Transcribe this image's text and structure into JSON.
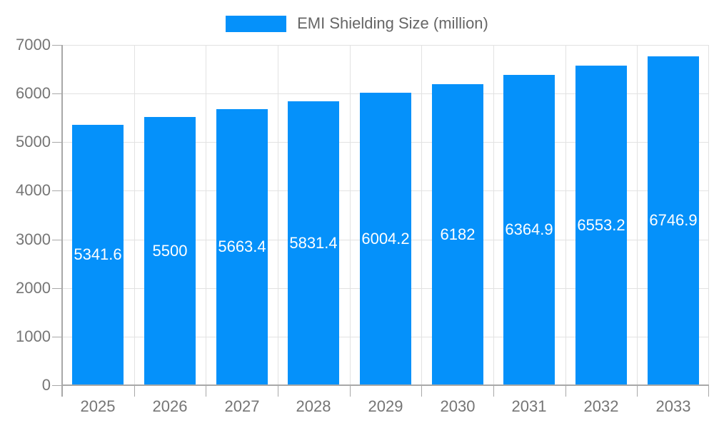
{
  "chart_data": {
    "type": "bar",
    "title": "EMI Shielding Size (million)",
    "legend": {
      "label": "EMI Shielding Size (million)",
      "position": "top-center"
    },
    "categories": [
      "2025",
      "2026",
      "2027",
      "2028",
      "2029",
      "2030",
      "2031",
      "2032",
      "2033"
    ],
    "values": [
      5341.6,
      5500,
      5663.4,
      5831.4,
      6004.2,
      6182,
      6364.9,
      6553.2,
      6746.9
    ],
    "value_labels": [
      "5341.6",
      "5500",
      "5663.4",
      "5831.4",
      "6004.2",
      "6182",
      "6364.9",
      "6553.2",
      "6746.9"
    ],
    "xlabel": "",
    "ylabel": "",
    "ylim": [
      0,
      7000
    ],
    "ytick_interval": 1000,
    "ytick_labels": [
      "0",
      "1000",
      "2000",
      "3000",
      "4000",
      "5000",
      "6000",
      "7000"
    ],
    "grid": "horizontal lines at each 1000 and vertical lines at category boundaries",
    "legend_position": "top-center",
    "colors": {
      "bar": "#0591fa",
      "grid": "#e2e2e2",
      "axis": "#a8a8a8",
      "axis_text": "#757575",
      "legend_text": "#666666",
      "bar_label": "#ffffff",
      "background": "#ffffff"
    }
  }
}
